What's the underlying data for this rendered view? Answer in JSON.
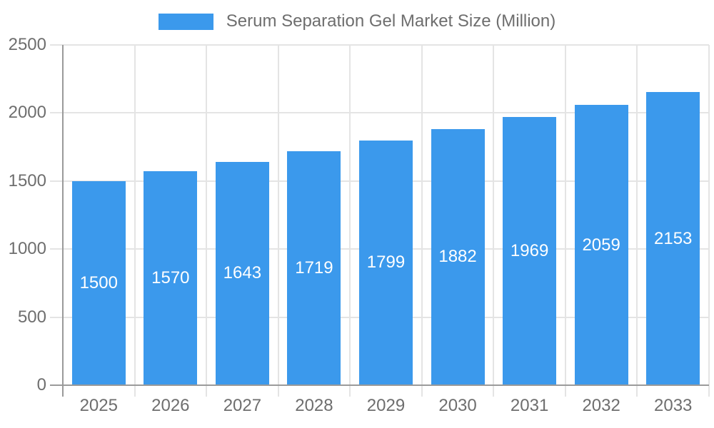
{
  "chart_data": {
    "type": "bar",
    "title": "Serum Separation Gel Market Size (Million)",
    "legend_label": "Serum Separation Gel Market Size (Million)",
    "legend_position": "top",
    "categories": [
      "2025",
      "2026",
      "2027",
      "2028",
      "2029",
      "2030",
      "2031",
      "2032",
      "2033"
    ],
    "values": [
      1500,
      1570,
      1643,
      1719,
      1799,
      1882,
      1969,
      2059,
      2153
    ],
    "xlabel": "",
    "ylabel": "",
    "ylim": [
      0,
      2500
    ],
    "ytick_step": 500,
    "ytick_labels": [
      "0",
      "500",
      "1000",
      "1500",
      "2000",
      "2500"
    ],
    "grid": true,
    "value_labels_shown": true,
    "colors": {
      "bar": "#3B99EC",
      "value_label": "#FFFFFF",
      "grid": "#E4E4E4",
      "axis": "#9A9A9A",
      "tick_label": "#6E6E6E",
      "background": "#FFFFFF"
    }
  }
}
